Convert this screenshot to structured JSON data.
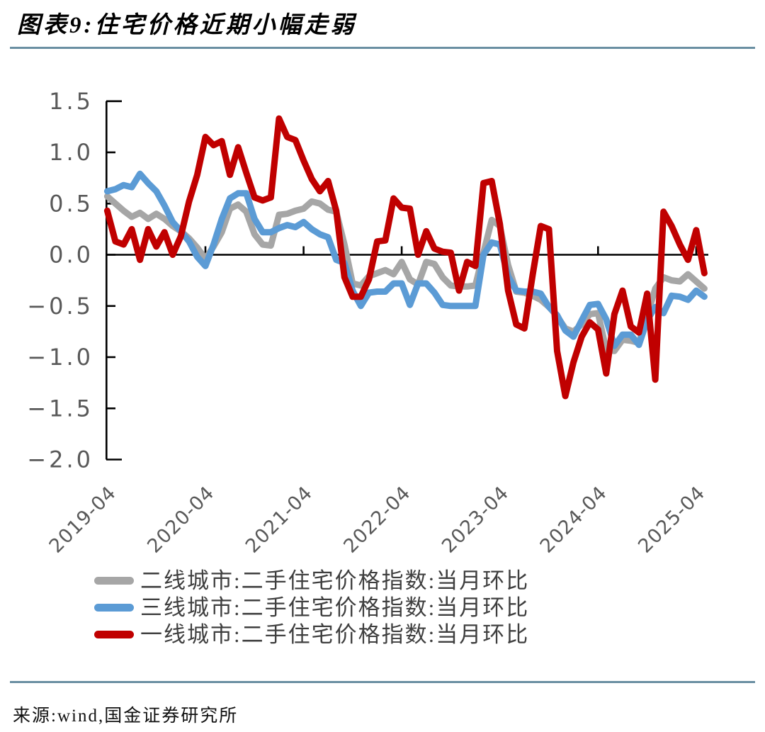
{
  "title": "图表9:住宅价格近期小幅走弱",
  "source": "来源:wind,国金证券研究所",
  "accent_rule_color": "#6a8fa2",
  "chart_data": {
    "type": "line",
    "grid": false,
    "legend_position": "bottom",
    "ylim": [
      -2.0,
      1.5
    ],
    "y_ticks": [
      "1.5",
      "1.0",
      "0.5",
      "0.0",
      "−0.5",
      "−1.0",
      "−1.5",
      "−2.0"
    ],
    "x_tick_labels": [
      "2019-04",
      "2020-04",
      "2021-04",
      "2022-04",
      "2023-04",
      "2024-04",
      "2025-04"
    ],
    "x": [
      "2019-04",
      "2019-05",
      "2019-06",
      "2019-07",
      "2019-08",
      "2019-09",
      "2019-10",
      "2019-11",
      "2019-12",
      "2020-01",
      "2020-02",
      "2020-03",
      "2020-04",
      "2020-05",
      "2020-06",
      "2020-07",
      "2020-08",
      "2020-09",
      "2020-10",
      "2020-11",
      "2020-12",
      "2021-01",
      "2021-02",
      "2021-03",
      "2021-04",
      "2021-05",
      "2021-06",
      "2021-07",
      "2021-08",
      "2021-09",
      "2021-10",
      "2021-11",
      "2021-12",
      "2022-01",
      "2022-02",
      "2022-03",
      "2022-04",
      "2022-05",
      "2022-06",
      "2022-07",
      "2022-08",
      "2022-09",
      "2022-10",
      "2022-11",
      "2022-12",
      "2023-01",
      "2023-02",
      "2023-03",
      "2023-04",
      "2023-05",
      "2023-06",
      "2023-07",
      "2023-08",
      "2023-09",
      "2023-10",
      "2023-11",
      "2023-12",
      "2024-01",
      "2024-02",
      "2024-03",
      "2024-04",
      "2024-05",
      "2024-06",
      "2024-07",
      "2024-08",
      "2024-09",
      "2024-10",
      "2024-11",
      "2024-12",
      "2025-01",
      "2025-02",
      "2025-03",
      "2025-04",
      "2025-05"
    ],
    "series": [
      {
        "name": "二线城市:二手住宅价格指数:当月环比",
        "color": "#a6a6a6",
        "values": [
          0.57,
          0.5,
          0.43,
          0.37,
          0.41,
          0.35,
          0.4,
          0.35,
          0.28,
          0.23,
          0.16,
          0.07,
          -0.04,
          0.08,
          0.22,
          0.45,
          0.49,
          0.42,
          0.2,
          0.1,
          0.09,
          0.39,
          0.4,
          0.43,
          0.45,
          0.52,
          0.5,
          0.44,
          0.42,
          0.1,
          -0.28,
          -0.3,
          -0.21,
          -0.18,
          -0.15,
          -0.19,
          -0.07,
          -0.24,
          -0.29,
          -0.07,
          -0.09,
          -0.22,
          -0.3,
          -0.31,
          -0.31,
          -0.3,
          0.02,
          0.34,
          0.28,
          -0.1,
          -0.36,
          -0.37,
          -0.4,
          -0.44,
          -0.51,
          -0.6,
          -0.72,
          -0.75,
          -0.68,
          -0.58,
          -0.57,
          -0.93,
          -0.94,
          -0.83,
          -0.84,
          -0.86,
          -0.6,
          -0.33,
          -0.22,
          -0.25,
          -0.26,
          -0.19,
          -0.26,
          -0.33
        ]
      },
      {
        "name": "三线城市:二手住宅价格指数:当月环比",
        "color": "#5b9bd5",
        "values": [
          0.62,
          0.64,
          0.68,
          0.66,
          0.79,
          0.7,
          0.62,
          0.48,
          0.32,
          0.23,
          0.13,
          -0.02,
          -0.11,
          0.1,
          0.35,
          0.55,
          0.6,
          0.6,
          0.35,
          0.22,
          0.22,
          0.26,
          0.29,
          0.27,
          0.32,
          0.25,
          0.2,
          0.17,
          -0.05,
          -0.08,
          -0.35,
          -0.5,
          -0.37,
          -0.36,
          -0.36,
          -0.28,
          -0.28,
          -0.49,
          -0.28,
          -0.28,
          -0.37,
          -0.49,
          -0.5,
          -0.5,
          -0.5,
          -0.5,
          0.0,
          0.12,
          0.1,
          -0.21,
          -0.35,
          -0.36,
          -0.36,
          -0.38,
          -0.51,
          -0.59,
          -0.74,
          -0.8,
          -0.64,
          -0.49,
          -0.48,
          -0.63,
          -0.89,
          -0.78,
          -0.78,
          -0.88,
          -0.64,
          -0.51,
          -0.57,
          -0.4,
          -0.41,
          -0.44,
          -0.35,
          -0.41
        ]
      },
      {
        "name": "一线城市:二手住宅价格指数:当月环比",
        "color": "#c00000",
        "values": [
          0.43,
          0.13,
          0.1,
          0.25,
          -0.05,
          0.25,
          0.08,
          0.22,
          0.0,
          0.18,
          0.52,
          0.78,
          1.15,
          1.07,
          1.11,
          0.78,
          1.05,
          0.8,
          0.56,
          0.53,
          0.56,
          1.33,
          1.15,
          1.12,
          0.92,
          0.74,
          0.62,
          0.72,
          0.43,
          -0.22,
          -0.41,
          -0.41,
          -0.24,
          0.13,
          0.14,
          0.55,
          0.46,
          0.45,
          0.0,
          0.23,
          0.06,
          0.03,
          0.02,
          -0.35,
          -0.07,
          -0.11,
          0.7,
          0.72,
          0.3,
          -0.35,
          -0.68,
          -0.72,
          -0.2,
          0.28,
          0.25,
          -0.94,
          -1.38,
          -1.05,
          -0.8,
          -0.66,
          -0.73,
          -1.16,
          -0.58,
          -0.35,
          -0.7,
          -0.76,
          -0.38,
          -1.22,
          0.42,
          0.28,
          0.1,
          -0.05,
          0.24,
          -0.18
        ]
      }
    ]
  }
}
